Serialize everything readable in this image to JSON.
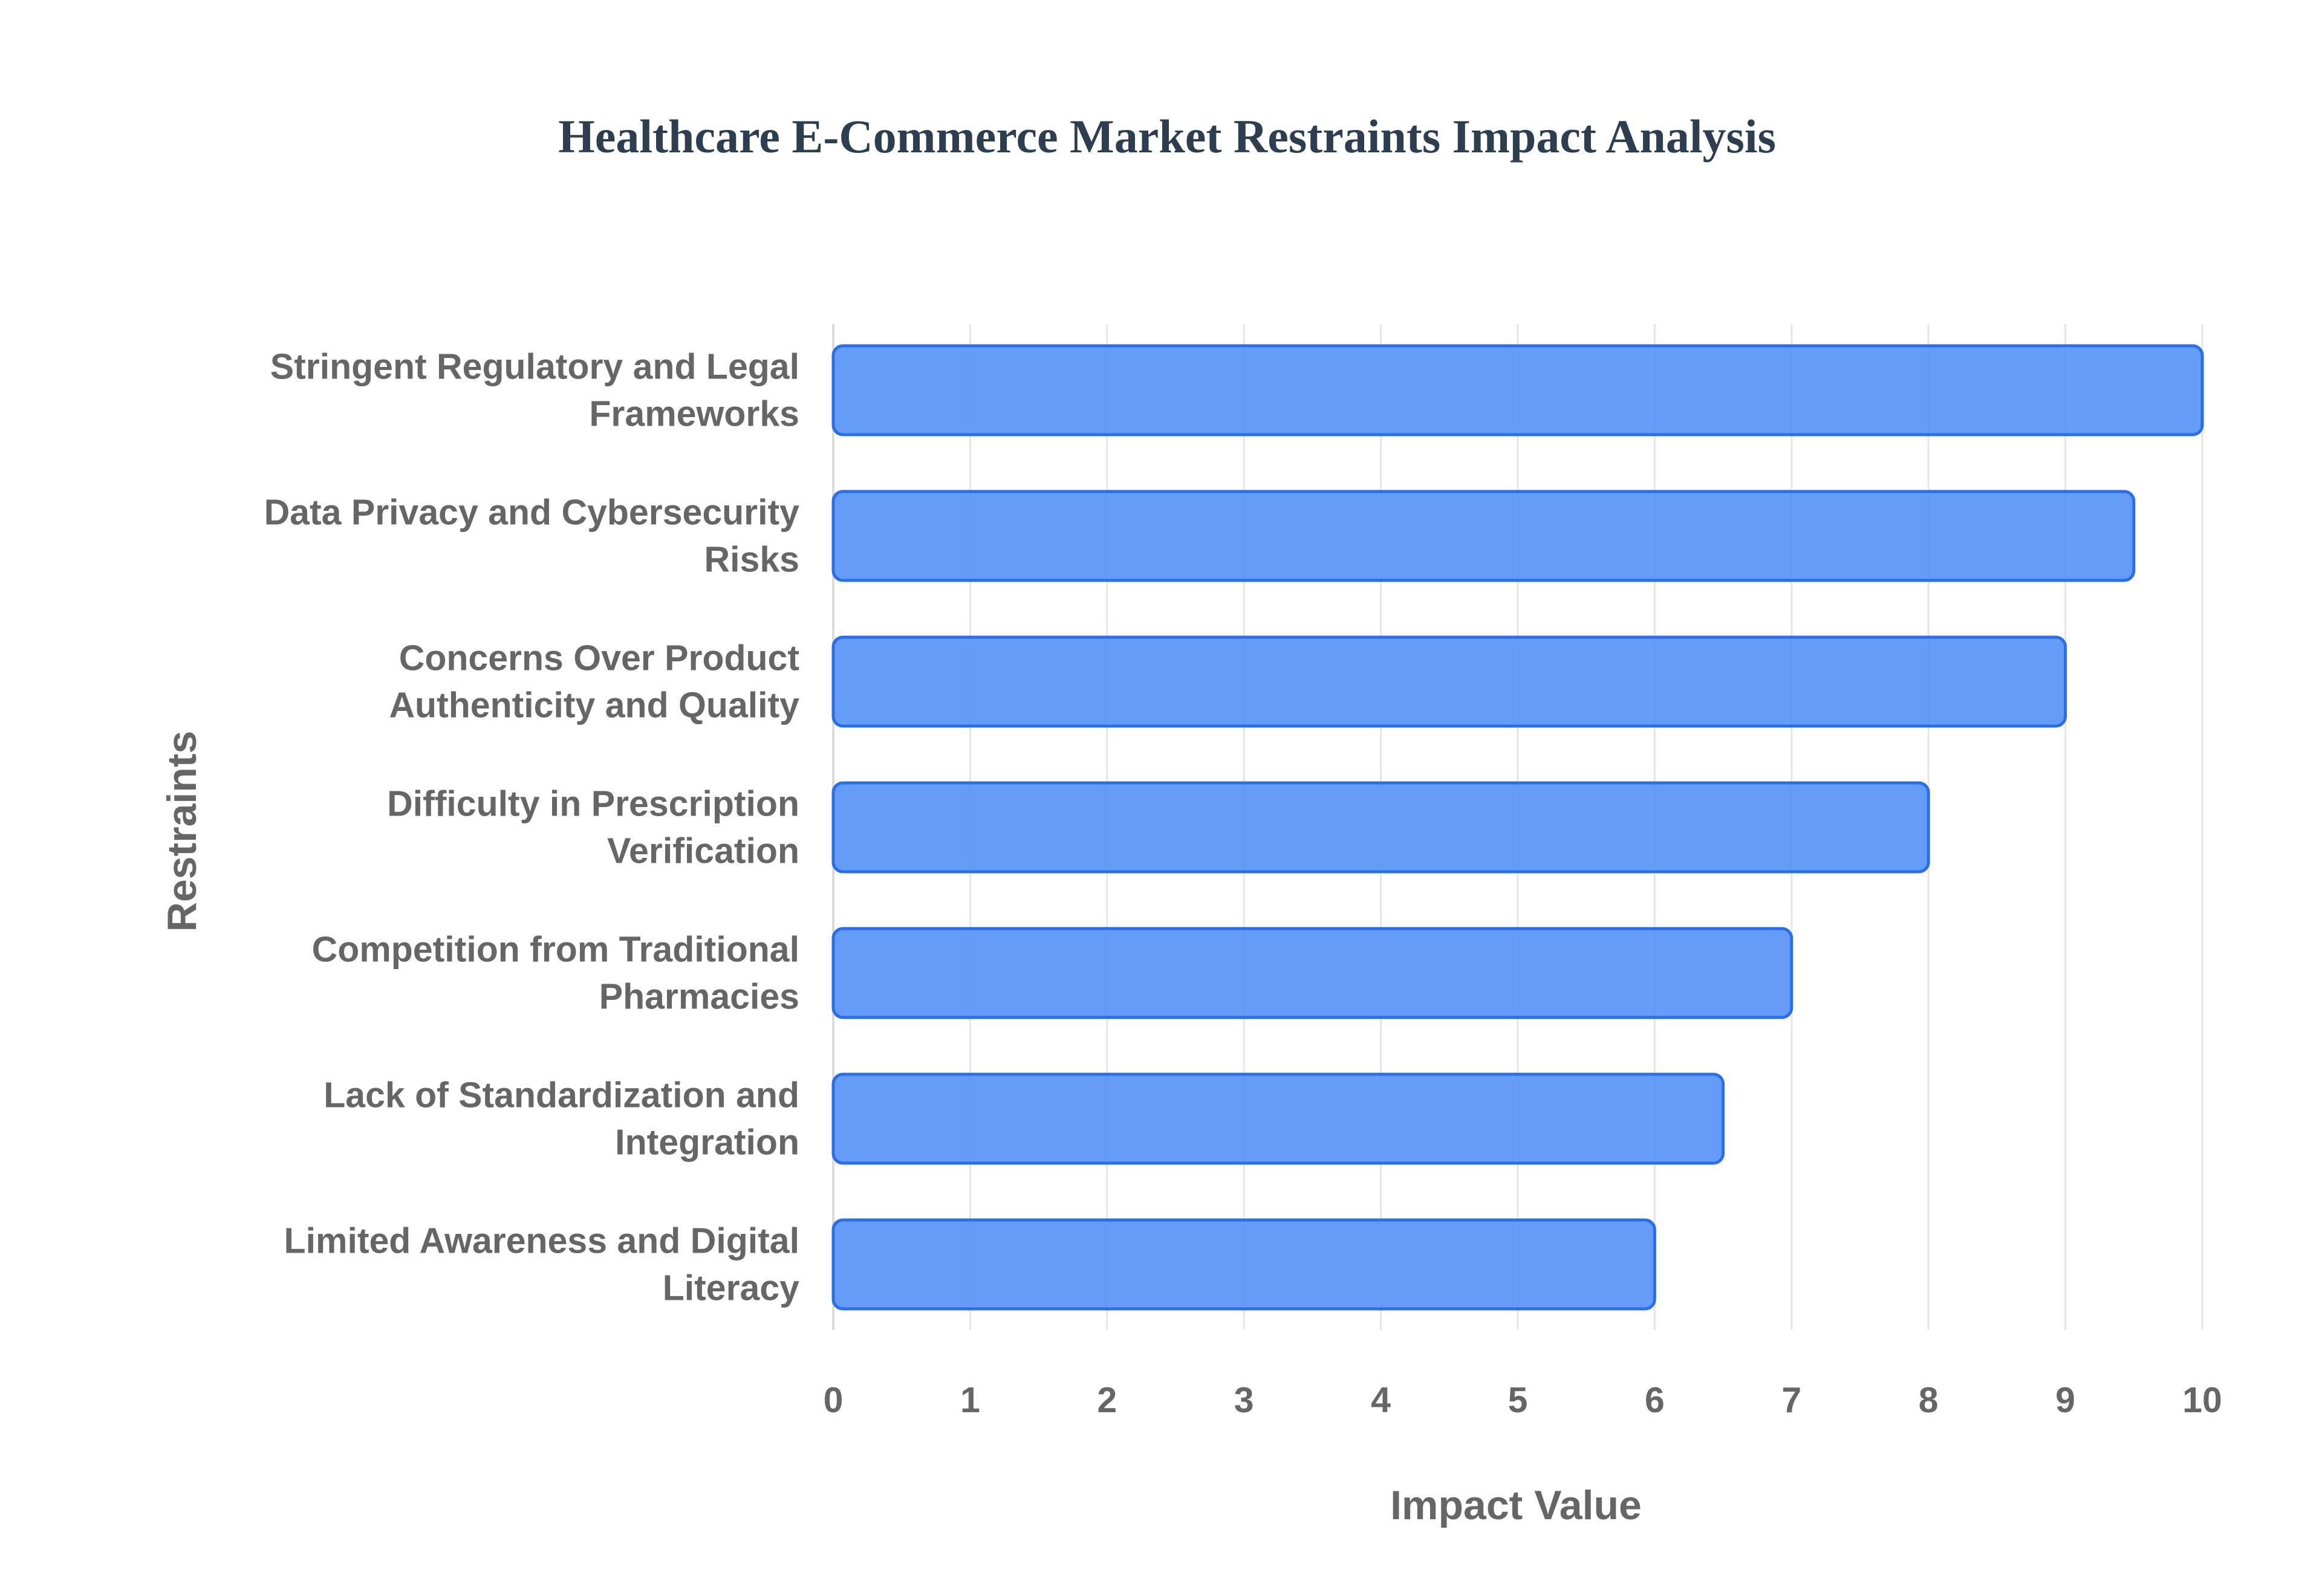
{
  "chart_data": {
    "type": "bar",
    "orientation": "horizontal",
    "title": "Healthcare E-Commerce Market Restraints Impact Analysis",
    "xlabel": "Impact Value",
    "ylabel": "Restraints",
    "xlim": [
      0,
      10
    ],
    "x_ticks": [
      "0",
      "1",
      "2",
      "3",
      "4",
      "5",
      "6",
      "7",
      "8",
      "9",
      "10"
    ],
    "grid": true,
    "legend": "none",
    "colors": {
      "bar_fill": "#4f8ef7",
      "bar_border": "#2a6ee8",
      "title": "#2c3e50",
      "labels": "#666666"
    },
    "categories": [
      [
        "Stringent Regulatory and Legal",
        "Frameworks"
      ],
      [
        "Data Privacy and Cybersecurity",
        "Risks"
      ],
      [
        "Concerns Over Product",
        "Authenticity and Quality"
      ],
      [
        "Difficulty in Prescription",
        "Verification"
      ],
      [
        "Competition from Traditional",
        "Pharmacies"
      ],
      [
        "Lack of Standardization and",
        "Integration"
      ],
      [
        "Limited Awareness and Digital",
        "Literacy"
      ]
    ],
    "values": [
      10,
      9.5,
      9,
      8,
      7,
      6.5,
      6
    ]
  }
}
